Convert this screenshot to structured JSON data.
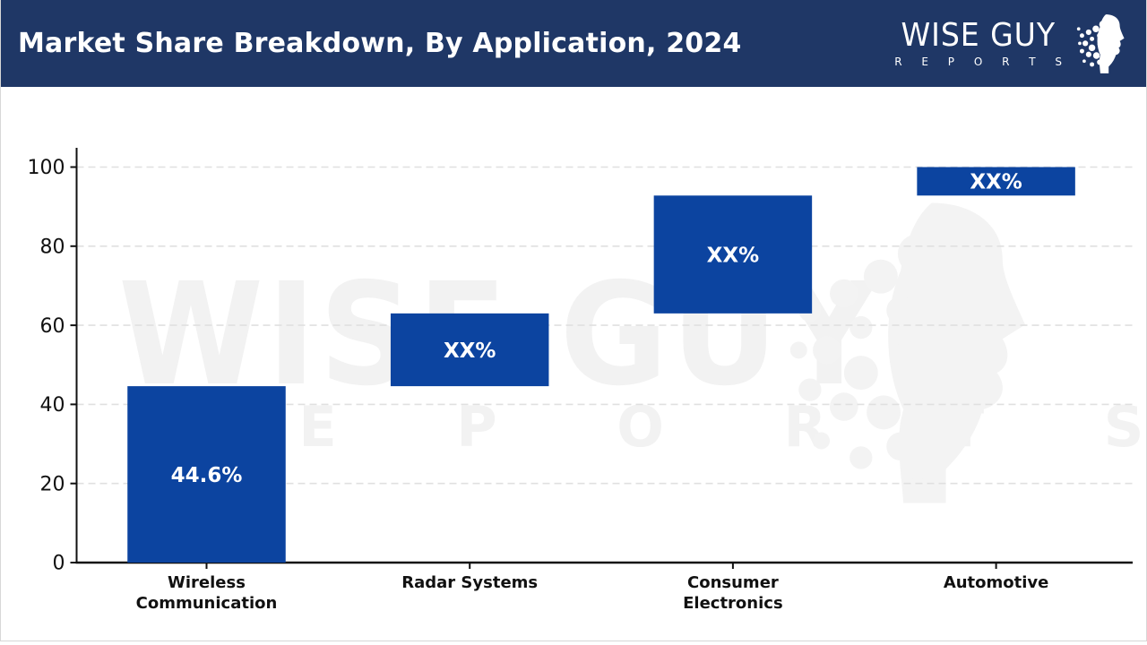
{
  "header": {
    "title": "Market Share Breakdown, By Application, 2024",
    "logo": {
      "line1": "WISE GUY",
      "line2": "R E P O R T S"
    }
  },
  "watermark": {
    "line1": "WISE GUY",
    "line2": "R E P O R T S"
  },
  "chart_data": {
    "type": "bar",
    "subtype": "waterfall",
    "title": "Market Share Breakdown, By Application, 2024",
    "xlabel": "",
    "ylabel": "",
    "ylim": [
      0,
      100
    ],
    "yticks": [
      0,
      20,
      40,
      60,
      80,
      100
    ],
    "grid": "horizontal-dashed",
    "legend": "none",
    "bar_color": "#0c44a0",
    "bar_label_color": "#ffffff",
    "categories": [
      {
        "name": "Wireless Communication",
        "lines": [
          "Wireless",
          "Communication"
        ]
      },
      {
        "name": "Radar Systems",
        "lines": [
          "Radar Systems"
        ]
      },
      {
        "name": "Consumer Electronics",
        "lines": [
          "Consumer",
          "Electronics"
        ]
      },
      {
        "name": "Automotive",
        "lines": [
          "Automotive"
        ]
      }
    ],
    "segments": [
      {
        "category": "Wireless Communication",
        "label": "44.6%",
        "start": 0,
        "end": 44.6
      },
      {
        "category": "Radar Systems",
        "label": "XX%",
        "start": 44.6,
        "end": 63.0
      },
      {
        "category": "Consumer Electronics",
        "label": "XX%",
        "start": 63.0,
        "end": 92.8
      },
      {
        "category": "Automotive",
        "label": "XX%",
        "start": 92.8,
        "end": 100.0
      }
    ]
  }
}
